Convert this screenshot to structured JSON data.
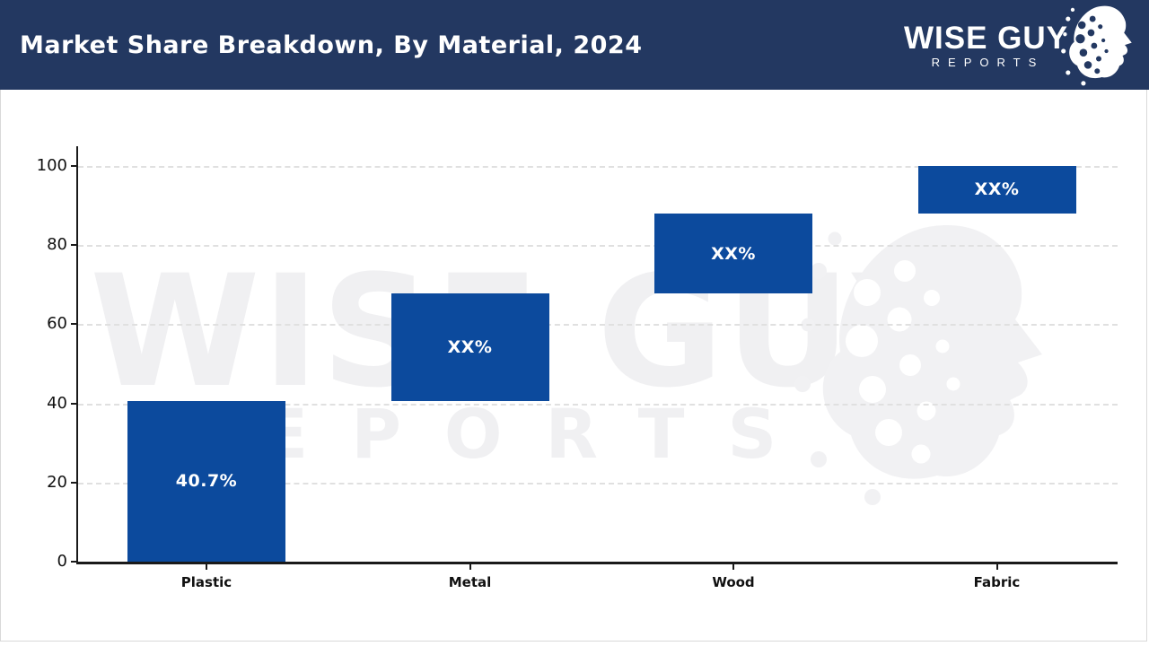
{
  "header": {
    "title": "Market Share Breakdown, By Material, 2024",
    "logo": {
      "line1": "WISE GUY",
      "line2": "REPORTS",
      "face_icon": "dotted-head-profile"
    }
  },
  "watermark": {
    "line1": "WISE GUY",
    "line2": "REPORTS",
    "face_icon": "dotted-head-profile"
  },
  "colors": {
    "header_bg": "#233861",
    "bar": "#0c4a9d",
    "bar_label": "#ffffff",
    "grid": "#e0e0e0",
    "axis": "#1a1a1a",
    "watermark": "#f0f0f2"
  },
  "chart_data": {
    "type": "bar",
    "subtype": "waterfall",
    "title": "Market Share Breakdown, By Material, 2024",
    "categories": [
      "Plastic",
      "Metal",
      "Wood",
      "Fabric"
    ],
    "segments": [
      {
        "category": "Plastic",
        "start": 0,
        "end": 40.7,
        "label": "40.7%"
      },
      {
        "category": "Metal",
        "start": 40.7,
        "end": 67.7,
        "label": "XX%"
      },
      {
        "category": "Wood",
        "start": 67.7,
        "end": 88.0,
        "label": "XX%"
      },
      {
        "category": "Fabric",
        "start": 88.0,
        "end": 100.0,
        "label": "XX%"
      }
    ],
    "xlabel": "",
    "ylabel": "",
    "yticks": [
      0,
      20,
      40,
      60,
      80,
      100
    ],
    "ylim": [
      0,
      105
    ],
    "grid": "horizontal-dashed",
    "legend": "none",
    "bar_color": "#0c4a9d",
    "value_label_color": "#ffffff"
  }
}
